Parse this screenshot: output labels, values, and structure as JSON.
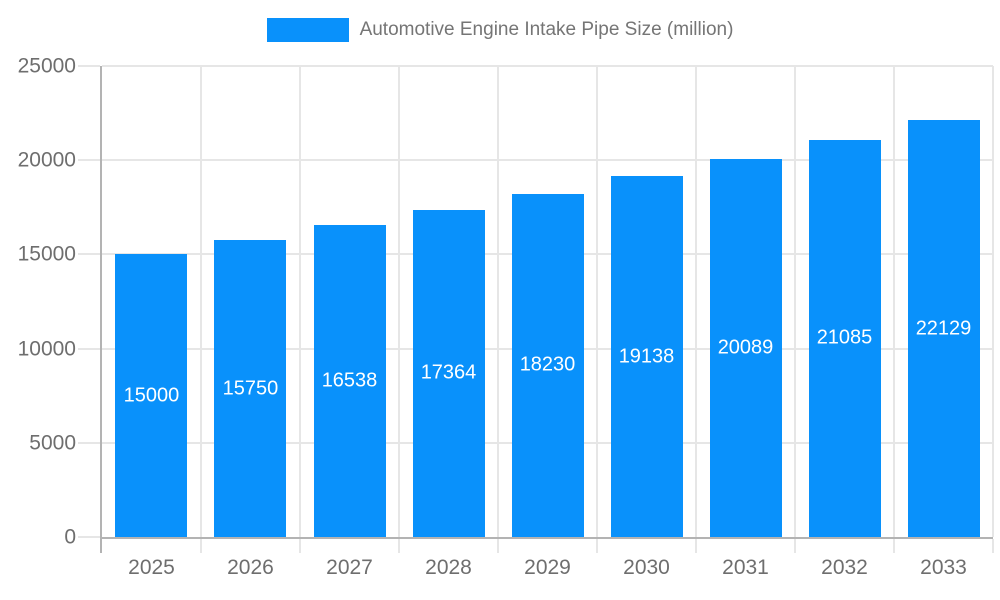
{
  "legend": {
    "label": "Automotive Engine Intake Pipe Size (million)"
  },
  "chart_data": {
    "type": "bar",
    "title": "Automotive Engine Intake Pipe Size (million)",
    "categories": [
      "2025",
      "2026",
      "2027",
      "2028",
      "2029",
      "2030",
      "2031",
      "2032",
      "2033"
    ],
    "values": [
      15000,
      15750,
      16538,
      17364,
      18230,
      19138,
      20089,
      21085,
      22129
    ],
    "bar_labels": [
      "15000",
      "15750",
      "16538",
      "17364",
      "18230",
      "19138",
      "20089",
      "21085",
      "22129"
    ],
    "xlabel": "",
    "ylabel": "",
    "ylim": [
      0,
      25000
    ],
    "yticks": [
      0,
      5000,
      10000,
      15000,
      20000,
      25000
    ],
    "grid": true,
    "legend_position": "top",
    "bar_color": "#0991fb",
    "bar_label_color": "#ffffff",
    "grid_color": "#e6e6e6",
    "axis_line_color": "#b3b3b3",
    "axis_text_color": "#6e6e6e",
    "legend_text_color": "#757575"
  }
}
